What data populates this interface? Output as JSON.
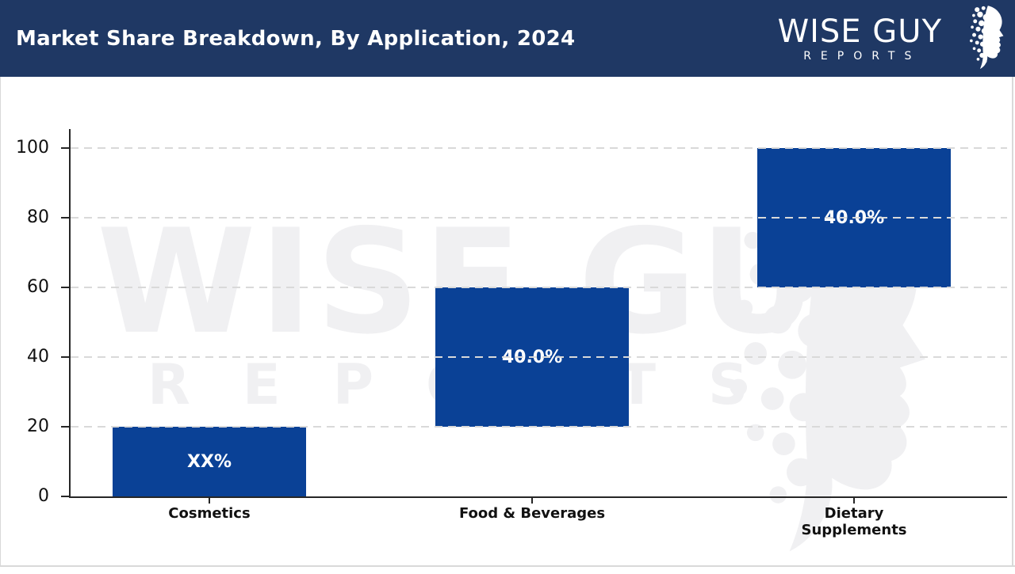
{
  "header": {
    "title": "Market Share Breakdown, By Application, 2024",
    "bg_color": "#1f3864",
    "logo": {
      "wordmark": "WISE GUY",
      "subtext": "REPORTS"
    }
  },
  "watermark": {
    "wordmark": "WISE GUY",
    "subtext": "REPORTS"
  },
  "chart_data": {
    "type": "bar",
    "variant": "floating-segment-breakdown",
    "title": "Market Share Breakdown, By Application, 2024",
    "categories": [
      "Cosmetics",
      "Food & Beverages",
      "Dietary Supplements"
    ],
    "tick_labels": [
      "Cosmetics",
      "Food & Beverages",
      "Dietary\nSupplements"
    ],
    "segments": [
      {
        "category": "Cosmetics",
        "start": 0,
        "end": 20,
        "label": "XX%"
      },
      {
        "category": "Food & Beverages",
        "start": 20,
        "end": 60,
        "label": "40.0%"
      },
      {
        "category": "Dietary Supplements",
        "start": 60,
        "end": 100,
        "label": "40.0%"
      }
    ],
    "ylim": [
      0,
      100
    ],
    "yticks": [
      0,
      20,
      40,
      60,
      80,
      100
    ],
    "grid": "horizontal-dashed",
    "grid_color": "#d9d9d9",
    "bar_color": "#0a4196",
    "bar_label_color": "#ffffff",
    "axis_color": "#262626",
    "legend": "none"
  }
}
